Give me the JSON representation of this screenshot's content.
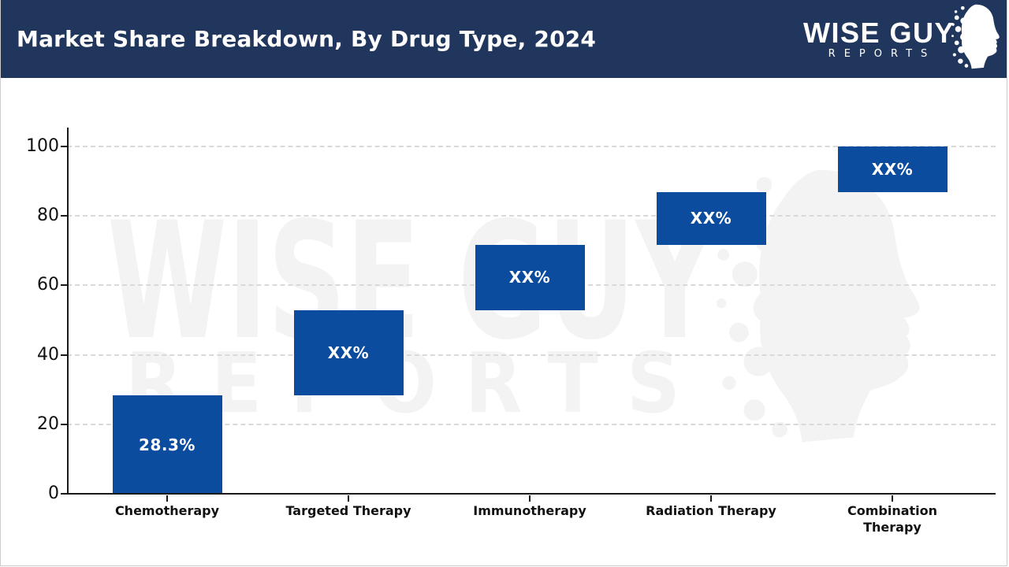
{
  "page": {
    "background": "#ffffff",
    "border_color": "#cccccc"
  },
  "header": {
    "background": "#21365d",
    "title": "Market Share Breakdown, By Drug Type, 2024",
    "title_color": "#ffffff",
    "logo": {
      "line1": "WISE GUY",
      "line2": "REPORTS"
    }
  },
  "watermark": {
    "line1": "WISE GUY",
    "line2": "REPORTS",
    "color": "#f3f3f4"
  },
  "chart_data": {
    "type": "bar",
    "subtype": "waterfall",
    "title": "Market Share Breakdown, By Drug Type, 2024",
    "xlabel": "",
    "ylabel": "",
    "ylim": [
      0,
      105
    ],
    "y_ticks": [
      0,
      20,
      40,
      60,
      80,
      100
    ],
    "grid": "horizontal-dashed",
    "gridline_color": "#d9d9d9",
    "bar_color": "#0b4c9f",
    "bar_label_color": "#ffffff",
    "legend": "none",
    "categories": [
      "Chemotherapy",
      "Targeted Therapy",
      "Immunotherapy",
      "Radiation Therapy",
      "Combination Therapy"
    ],
    "category_display": [
      "Chemotherapy",
      "Targeted Therapy",
      "Immunotherapy",
      "Radiation Therapy",
      "Combination\nTherapy"
    ],
    "segments": [
      {
        "category": "Chemotherapy",
        "start": 0,
        "end": 28.3,
        "value": 28.3,
        "label": "28.3%"
      },
      {
        "category": "Targeted Therapy",
        "start": 28.3,
        "end": 52.9,
        "value": 24.6,
        "label": "XX%"
      },
      {
        "category": "Immunotherapy",
        "start": 52.9,
        "end": 71.7,
        "value": 18.8,
        "label": "XX%"
      },
      {
        "category": "Radiation Therapy",
        "start": 71.7,
        "end": 86.8,
        "value": 15.1,
        "label": "XX%"
      },
      {
        "category": "Combination Therapy",
        "start": 86.8,
        "end": 100,
        "value": 13.2,
        "label": "XX%"
      }
    ]
  }
}
